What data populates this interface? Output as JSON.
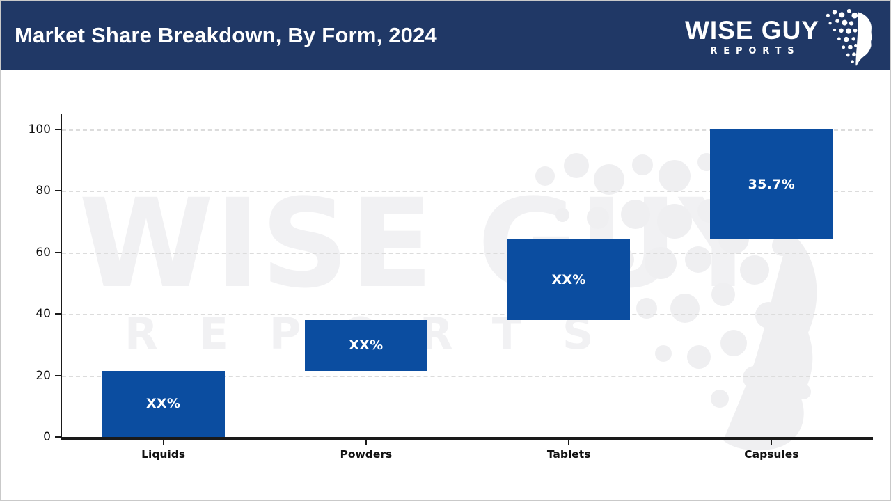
{
  "header": {
    "title": "Market Share Breakdown, By Form, 2024",
    "logo": {
      "wordmark": "WISE GUY",
      "subtext": "REPORTS"
    }
  },
  "watermark": {
    "wordmark": "WISE GUY",
    "subtext": "REPORTS"
  },
  "chart_data": {
    "type": "bar",
    "subtype": "waterfall",
    "title": "Market Share Breakdown, By Form, 2024",
    "categories": [
      "Liquids",
      "Powders",
      "Tablets",
      "Capsules"
    ],
    "bars": [
      {
        "category": "Liquids",
        "start": 0,
        "end": 21.5,
        "label": "XX%"
      },
      {
        "category": "Powders",
        "start": 21.5,
        "end": 38.1,
        "label": "XX%"
      },
      {
        "category": "Tablets",
        "start": 38.1,
        "end": 64.3,
        "label": "XX%"
      },
      {
        "category": "Capsules",
        "start": 64.3,
        "end": 100,
        "label": "35.7%"
      }
    ],
    "xlabel": "",
    "ylabel": "",
    "ylim": [
      0,
      105
    ],
    "yticks": [
      0,
      20,
      40,
      60,
      80,
      100
    ],
    "grid": "horizontal-dashed",
    "legend": "none",
    "bar_width_fraction": 0.151,
    "bar_color": "#0b4da0",
    "bar_label_color": "#ffffff",
    "axis_color": "#1a1a1a",
    "gridline_color": "#dcdcdc"
  },
  "colors": {
    "header_bg": "#203866",
    "page_bg": "#ffffff",
    "watermark": "#f1f1f3"
  }
}
